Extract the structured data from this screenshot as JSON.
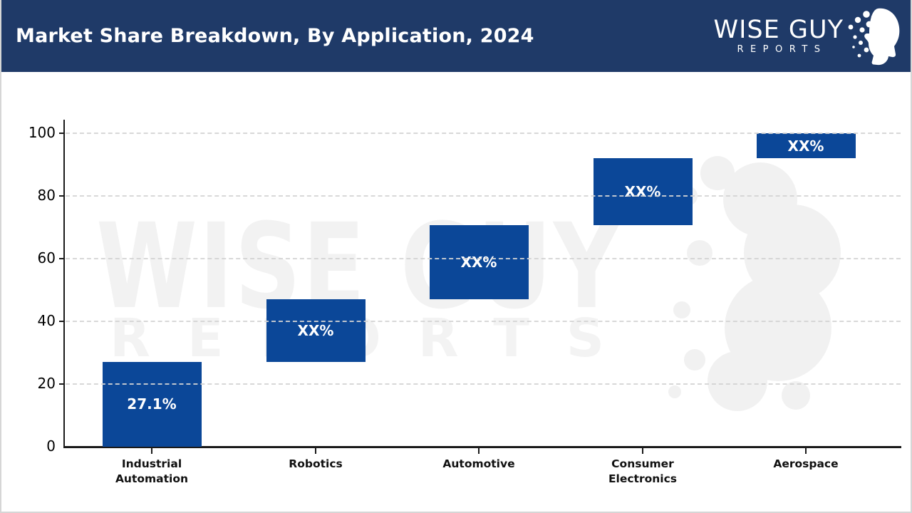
{
  "header": {
    "title": "Market Share Breakdown, By Application, 2024",
    "logo": {
      "line1": "WISE GUY",
      "line2": "REPORTS"
    }
  },
  "watermark": {
    "line1": "WISE GUY",
    "line2": "REPORTS"
  },
  "colors": {
    "header_bg": "#1f3a68",
    "bar_blue": "#0b4798",
    "gridline": "#d4d4d4",
    "watermark": "#f2f2f2",
    "axis": "#1a1a1a"
  },
  "chart_data": {
    "type": "bar",
    "subtype": "waterfall",
    "title": "Market Share Breakdown, By Application, 2024",
    "categories": [
      "Industrial\nAutomation",
      "Robotics",
      "Automotive",
      "Consumer\nElectronics",
      "Aerospace"
    ],
    "segments": [
      {
        "category": "Industrial Automation",
        "start": 0,
        "end": 27.1,
        "value": 27.1,
        "label": "27.1%"
      },
      {
        "category": "Robotics",
        "start": 27.1,
        "end": 47.0,
        "value": 19.9,
        "label": "XX%"
      },
      {
        "category": "Automotive",
        "start": 47.0,
        "end": 70.7,
        "value": 23.7,
        "label": "XX%"
      },
      {
        "category": "Consumer Electronics",
        "start": 70.7,
        "end": 92.0,
        "value": 21.3,
        "label": "XX%"
      },
      {
        "category": "Aerospace",
        "start": 92.0,
        "end": 100.0,
        "value": 8.0,
        "label": "XX%"
      }
    ],
    "xlabel": "",
    "ylabel": "",
    "yticks": [
      0,
      20,
      40,
      60,
      80,
      100
    ],
    "ylim": [
      0,
      105
    ],
    "grid": "dashed-horizontal",
    "legend": "none",
    "bar_color": "#0b4798",
    "label_color": "#ffffff"
  }
}
